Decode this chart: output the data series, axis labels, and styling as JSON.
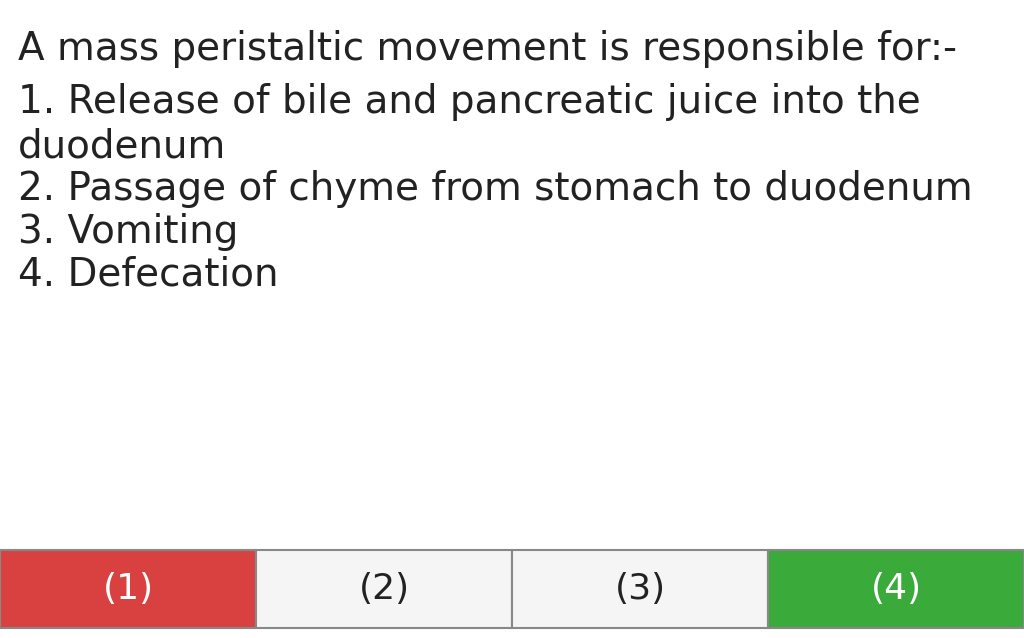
{
  "title": "A mass peristaltic movement is responsible for:-",
  "option1_line1": "1. Release of bile and pancreatic juice into the",
  "option1_line2": "duodenum",
  "option2": "2. Passage of chyme from stomach to duodenum",
  "option3": "3. Vomiting",
  "option4": "4. Defecation",
  "buttons": [
    "(1)",
    "(2)",
    "(3)",
    "(4)"
  ],
  "button_colors": [
    "#d94040",
    "#f5f5f5",
    "#f5f5f5",
    "#3aaa3a"
  ],
  "button_text_colors": [
    "#ffffff",
    "#222222",
    "#222222",
    "#ffffff"
  ],
  "background_color": "#ffffff",
  "title_fontsize": 28,
  "option_fontsize": 28,
  "button_fontsize": 26,
  "text_color": "#222222"
}
